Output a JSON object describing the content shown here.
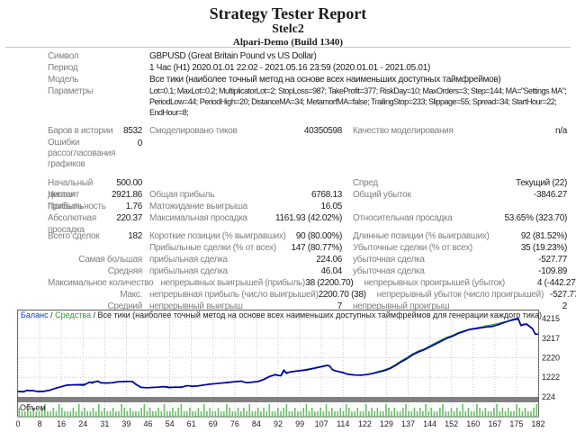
{
  "header": {
    "title": "Strategy Tester Report",
    "expert": "Stelc2",
    "server": "Alpari-Demo (Build 1340)"
  },
  "info_rows": [
    {
      "label": "Символ",
      "value": "GBPUSD (Great Britain Pound vs US Dollar)"
    },
    {
      "label": "Период",
      "value": "1 Час (H1) 2020.01.01 22:02 - 2021.05.16 23:59 (2020.01.01 - 2021.05.01)"
    },
    {
      "label": "Модель",
      "value": "Все тики (наиболее точный метод на основе всех наименьших доступных таймфреймов)"
    },
    {
      "label": "Параметры",
      "value_lines": [
        "Lot=0.1; MaxLot=0.2; MultiplicatorLot=2; StopLoss=987; TakeProfit=377; RiskDay=10; MaxOrders=3; Step=144; MA=\"Settings MA\";",
        "PeriodLow=44; PeriodHigh=20; DistanceMA=34; MetamorfMA=false; TrailingStop=233; Slippage=55; Spread=34; StartHour=22;",
        "EndHour=8;"
      ]
    }
  ],
  "stats_sections": [
    {
      "rows": [
        {
          "c": [
            "Баров в истории",
            "8532",
            "Смоделировано тиков",
            "40350598",
            "Качество моделирования",
            "n/a"
          ]
        },
        {
          "c": [
            "Ошибки рассогласования графиков",
            "0",
            "",
            "",
            "",
            ""
          ],
          "tall": true
        }
      ]
    },
    {
      "rows": [
        {
          "c": [
            "Начальный депозит",
            "500.00",
            "",
            "",
            "Спред",
            "Текущий (22)"
          ]
        },
        {
          "c": [
            "Чистая прибыль",
            "2921.86",
            "Общая прибыль",
            "6768.13",
            "Общий убыток",
            "-3846.27"
          ]
        },
        {
          "c": [
            "Прибыльность",
            "1.76",
            "Матожидание выигрыша",
            "16.05",
            "",
            ""
          ]
        },
        {
          "c": [
            "Абсолютная просадка",
            "220.37",
            "Максимальная просадка",
            "1161.93 (42.02%)",
            "Относительная просадка",
            "53.65% (323.70)"
          ]
        }
      ]
    },
    {
      "rows": [
        {
          "c": [
            "Всего сделок",
            "182",
            "Короткие позиции (% выигравших)",
            "90 (80.00%)",
            "Длинные позиции (% выигравших)",
            "92 (81.52%)"
          ]
        },
        {
          "c": [
            "",
            "",
            "Прибыльные сделки (% от всех)",
            "147 (80.77%)",
            "Убыточные сделки (% от всех)",
            "35 (19.23%)"
          ]
        },
        {
          "c": [
            "",
            "Самая большая",
            "прибыльная сделка",
            "224.06",
            "убыточная сделка",
            "-527.77"
          ],
          "sub": true
        },
        {
          "c": [
            "",
            "Средняя",
            "прибыльная сделка",
            "46.04",
            "убыточная сделка",
            "-109.89"
          ],
          "sub": true
        },
        {
          "c": [
            "",
            "Максимальное количество",
            "непрерывных выигрышей (прибыль)",
            "38 (2200.70)",
            "непрерывных проигрышей (убыток)",
            "4 (-442.27)"
          ],
          "sub": true
        },
        {
          "c": [
            "",
            "Макс.",
            "непрерывная прибыль (число выигрышей)",
            "2200.70 (38)",
            "непрерывный убыток (число проигрышей)",
            "-527.77 (1)"
          ],
          "sub": true
        },
        {
          "c": [
            "",
            "Средний",
            "непрерывный выигрыш",
            "7",
            "непрерывный проигрыш",
            "2"
          ],
          "sub": true
        }
      ]
    }
  ],
  "chart_data": {
    "type": "line",
    "legend": {
      "balance_label": "Баланс",
      "equity_label": "Средства",
      "mode_label": "Все тики (наиболее точный метод на основе всех наименьших доступных таймфреймов для генерации каждого тика)"
    },
    "volume_label": "Объем",
    "colors": {
      "balance": "#0000b4",
      "equity": "#2d9b2d",
      "legend_balance": "#0040c8",
      "legend_equity": "#2d9b2d",
      "volume": "#6abf69",
      "grid": "#c9c9c9",
      "border": "#5a5a5a",
      "separator": "#808080",
      "text": "#222222"
    },
    "x_ticks": [
      0,
      8,
      16,
      24,
      31,
      39,
      46,
      54,
      61,
      69,
      76,
      84,
      92,
      99,
      107,
      114,
      122,
      129,
      137,
      144,
      152,
      160,
      167,
      175,
      182
    ],
    "y_ticks": [
      224,
      1222,
      2220,
      3217,
      4215
    ],
    "xlim": [
      0,
      182
    ],
    "ylim": [
      224,
      4215
    ],
    "grid": true,
    "series": [
      {
        "name": "Баланс",
        "points": [
          [
            0,
            500
          ],
          [
            2,
            480
          ],
          [
            3,
            555
          ],
          [
            5,
            545
          ],
          [
            7,
            500
          ],
          [
            9,
            505
          ],
          [
            11,
            560
          ],
          [
            13,
            660
          ],
          [
            15,
            740
          ],
          [
            17,
            820
          ],
          [
            19,
            840
          ],
          [
            21,
            845
          ],
          [
            23,
            820
          ],
          [
            25,
            975
          ],
          [
            26,
            930
          ],
          [
            27,
            1000
          ],
          [
            28,
            1025
          ],
          [
            29,
            940
          ],
          [
            31,
            930
          ],
          [
            33,
            945
          ],
          [
            35,
            995
          ],
          [
            37,
            1005
          ],
          [
            39,
            1015
          ],
          [
            40,
            1015
          ],
          [
            41,
            900
          ],
          [
            42,
            800
          ],
          [
            43,
            710
          ],
          [
            45,
            690
          ],
          [
            47,
            705
          ],
          [
            49,
            720
          ],
          [
            51,
            745
          ],
          [
            53,
            700
          ],
          [
            55,
            725
          ],
          [
            57,
            710
          ],
          [
            59,
            795
          ],
          [
            60,
            790
          ],
          [
            61,
            760
          ],
          [
            63,
            785
          ],
          [
            65,
            830
          ],
          [
            67,
            870
          ],
          [
            69,
            900
          ],
          [
            71,
            925
          ],
          [
            73,
            955
          ],
          [
            75,
            985
          ],
          [
            77,
            1010
          ],
          [
            78,
            1025
          ],
          [
            79,
            985
          ],
          [
            80,
            950
          ],
          [
            82,
            975
          ],
          [
            84,
            1010
          ],
          [
            86,
            1110
          ],
          [
            88,
            1260
          ],
          [
            90,
            1360
          ],
          [
            91,
            1320
          ],
          [
            92,
            1310
          ],
          [
            93,
            1590
          ],
          [
            94,
            1420
          ],
          [
            95,
            1490
          ],
          [
            97,
            1530
          ],
          [
            99,
            1565
          ],
          [
            101,
            1600
          ],
          [
            103,
            1660
          ],
          [
            105,
            1725
          ],
          [
            107,
            1790
          ],
          [
            108,
            1830
          ],
          [
            109,
            1805
          ],
          [
            110,
            1620
          ],
          [
            111,
            1560
          ],
          [
            112,
            1520
          ],
          [
            114,
            1460
          ],
          [
            115,
            1395
          ],
          [
            116,
            1370
          ],
          [
            118,
            1340
          ],
          [
            120,
            1330
          ],
          [
            122,
            1360
          ],
          [
            124,
            1410
          ],
          [
            126,
            1490
          ],
          [
            128,
            1560
          ],
          [
            130,
            1660
          ],
          [
            132,
            1815
          ],
          [
            134,
            2010
          ],
          [
            136,
            2165
          ],
          [
            138,
            2360
          ],
          [
            140,
            2510
          ],
          [
            142,
            2625
          ],
          [
            144,
            2765
          ],
          [
            146,
            2910
          ],
          [
            148,
            3060
          ],
          [
            150,
            3210
          ],
          [
            152,
            3315
          ],
          [
            154,
            3460
          ],
          [
            156,
            3560
          ],
          [
            158,
            3660
          ],
          [
            160,
            3705
          ],
          [
            162,
            3745
          ],
          [
            164,
            3790
          ],
          [
            166,
            3820
          ],
          [
            168,
            3905
          ],
          [
            170,
            4010
          ],
          [
            172,
            4110
          ],
          [
            174,
            4190
          ],
          [
            175,
            4215
          ],
          [
            176,
            3860
          ],
          [
            177,
            3925
          ],
          [
            178,
            3935
          ],
          [
            179,
            3815
          ],
          [
            180,
            3705
          ],
          [
            181,
            3425
          ],
          [
            182,
            3422
          ]
        ]
      },
      {
        "name": "Средства",
        "points": [
          [
            0,
            500
          ],
          [
            4,
            540
          ],
          [
            8,
            510
          ],
          [
            12,
            600
          ],
          [
            16,
            790
          ],
          [
            20,
            850
          ],
          [
            24,
            900
          ],
          [
            26,
            1000
          ],
          [
            28,
            990
          ],
          [
            30,
            925
          ],
          [
            34,
            970
          ],
          [
            38,
            1020
          ],
          [
            40,
            980
          ],
          [
            41,
            860
          ],
          [
            43,
            700
          ],
          [
            47,
            710
          ],
          [
            51,
            755
          ],
          [
            55,
            715
          ],
          [
            59,
            780
          ],
          [
            63,
            800
          ],
          [
            67,
            880
          ],
          [
            71,
            935
          ],
          [
            75,
            1000
          ],
          [
            78,
            1035
          ],
          [
            80,
            940
          ],
          [
            84,
            1025
          ],
          [
            86,
            1140
          ],
          [
            88,
            1290
          ],
          [
            90,
            1335
          ],
          [
            92,
            1290
          ],
          [
            93,
            1500
          ],
          [
            95,
            1475
          ],
          [
            97,
            1545
          ],
          [
            100,
            1610
          ],
          [
            103,
            1690
          ],
          [
            106,
            1780
          ],
          [
            108,
            1845
          ],
          [
            109,
            1790
          ],
          [
            110,
            1590
          ],
          [
            112,
            1500
          ],
          [
            114,
            1430
          ],
          [
            116,
            1355
          ],
          [
            118,
            1330
          ],
          [
            120,
            1325
          ],
          [
            122,
            1370
          ],
          [
            124,
            1430
          ],
          [
            126,
            1520
          ],
          [
            128,
            1600
          ],
          [
            130,
            1700
          ],
          [
            132,
            1870
          ],
          [
            134,
            2065
          ],
          [
            136,
            2230
          ],
          [
            138,
            2420
          ],
          [
            140,
            2565
          ],
          [
            142,
            2665
          ],
          [
            144,
            2820
          ],
          [
            146,
            2980
          ],
          [
            148,
            3125
          ],
          [
            150,
            3265
          ],
          [
            152,
            3365
          ],
          [
            154,
            3505
          ],
          [
            156,
            3600
          ],
          [
            158,
            3685
          ],
          [
            160,
            3730
          ],
          [
            162,
            3790
          ],
          [
            164,
            3855
          ],
          [
            166,
            3905
          ],
          [
            168,
            3965
          ],
          [
            170,
            4045
          ],
          [
            172,
            4095
          ],
          [
            174,
            4150
          ],
          [
            175,
            4160
          ],
          [
            176,
            3845
          ],
          [
            177,
            3895
          ],
          [
            178,
            3905
          ],
          [
            179,
            3790
          ],
          [
            180,
            3685
          ],
          [
            181,
            3405
          ],
          [
            182,
            3422
          ]
        ]
      }
    ],
    "volume": {
      "unit": 0.1,
      "values": [
        2,
        1,
        1,
        3,
        1,
        2,
        1,
        1,
        2,
        3,
        1,
        1,
        2,
        1,
        3,
        2,
        1,
        1,
        1,
        2,
        1,
        3,
        1,
        2,
        1,
        1,
        2,
        1,
        3,
        1,
        2,
        1,
        1,
        2,
        1,
        1,
        3,
        2,
        1,
        2,
        1,
        1,
        1,
        2,
        3,
        1,
        2,
        1,
        1,
        2,
        1,
        3,
        1,
        1,
        2,
        1,
        2,
        3,
        1,
        1,
        2,
        1,
        1,
        2,
        1,
        3,
        1,
        2,
        1,
        1,
        2,
        1,
        1,
        3,
        2,
        1,
        1,
        2,
        1,
        2,
        1,
        3,
        1,
        1,
        2,
        1,
        2,
        1,
        3,
        1,
        1,
        2,
        1,
        2,
        3,
        1,
        1,
        2,
        1,
        1,
        2,
        3,
        1,
        2,
        1,
        1,
        2,
        1,
        3,
        1,
        2,
        1,
        1,
        2,
        1,
        3,
        2,
        1,
        1,
        2,
        1,
        1,
        3,
        1,
        2,
        1,
        2,
        1,
        1,
        3,
        2,
        1,
        2,
        1,
        1,
        2,
        3,
        1,
        1,
        2,
        1,
        2,
        1,
        3,
        1,
        2,
        1,
        1,
        2,
        3,
        1,
        1,
        2,
        1,
        2,
        1,
        3,
        1,
        2,
        1,
        1,
        3,
        2,
        1,
        2,
        1,
        1,
        2,
        3,
        1,
        2,
        1,
        2,
        1,
        1,
        3,
        2,
        1,
        2,
        1,
        1,
        2,
        3
      ]
    }
  }
}
